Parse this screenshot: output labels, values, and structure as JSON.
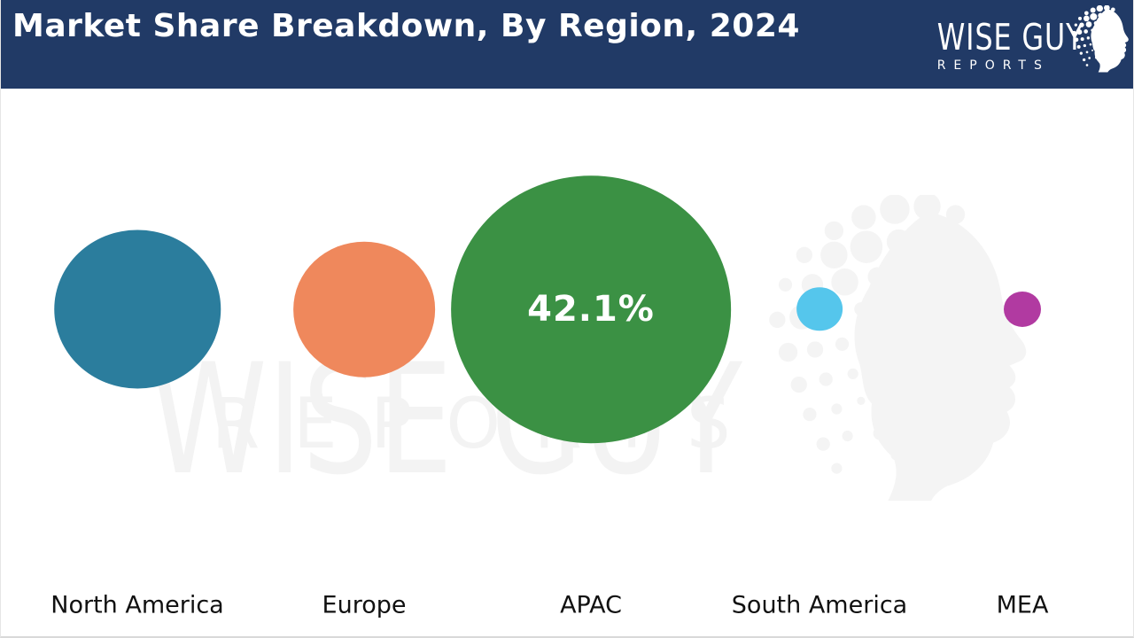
{
  "header": {
    "title": "Market Share Breakdown, By Region, 2024",
    "background_color": "#213a66",
    "logo": {
      "wordmark": "WISE GUY",
      "tagline": "REPORTS"
    }
  },
  "watermark": {
    "wordmark": "WISE GUY",
    "tagline": "REPORTS"
  },
  "chart_data": {
    "type": "bubble",
    "title": "Market Share Breakdown, By Region, 2024",
    "categories": [
      "North America",
      "Europe",
      "APAC",
      "South America",
      "MEA"
    ],
    "values": [
      25.0,
      21.3,
      42.1,
      6.9,
      5.6
    ],
    "value_labels_visible": [
      "",
      "",
      "42.1%",
      "",
      ""
    ],
    "colors": [
      "#2b7d9d",
      "#ef885c",
      "#3b9144",
      "#55c6ec",
      "#b13aa1"
    ],
    "value_text_color": "#ffffff",
    "category_text_color": "#111111",
    "grid": false,
    "legend_position": "none",
    "note": "Only the APAC bubble prints its value (42.1%); other values are estimated from bubble radii (radius proportional to value)."
  }
}
